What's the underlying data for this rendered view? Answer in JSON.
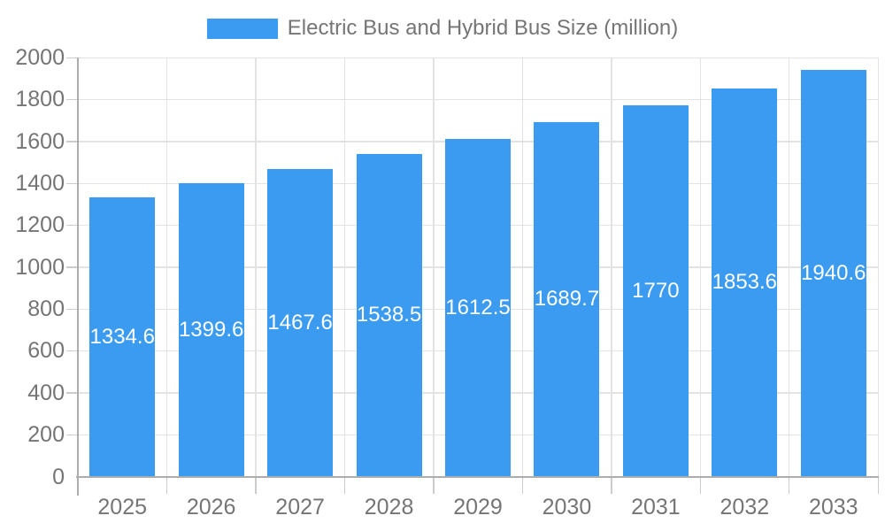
{
  "chart_data": {
    "type": "bar",
    "title": "Electric Bus and Hybrid Bus Size (million)",
    "legend_position": "top",
    "categories": [
      "2025",
      "2026",
      "2027",
      "2028",
      "2029",
      "2030",
      "2031",
      "2032",
      "2033"
    ],
    "series": [
      {
        "name": "Electric Bus and Hybrid Bus Size (million)",
        "values": [
          1334.6,
          1399.6,
          1467.6,
          1538.5,
          1612.5,
          1689.7,
          1770,
          1853.6,
          1940.6
        ]
      }
    ],
    "value_labels": [
      "1334.6",
      "1399.6",
      "1467.6",
      "1538.5",
      "1612.5",
      "1689.7",
      "1770",
      "1853.6",
      "1940.6"
    ],
    "xlabel": "",
    "ylabel": "",
    "ylim": [
      0,
      2000
    ],
    "ytick_step": 200,
    "ytick_labels": [
      "0",
      "200",
      "400",
      "600",
      "800",
      "1000",
      "1200",
      "1400",
      "1600",
      "1800",
      "2000"
    ],
    "grid": true,
    "colors": {
      "bar": "#3B9BF0",
      "grid": "#e3e3e3",
      "axis": "#adadad",
      "tick": "#cccccc",
      "axis_text": "#757575",
      "value_text": "#ffffff",
      "background": "#ffffff"
    }
  }
}
